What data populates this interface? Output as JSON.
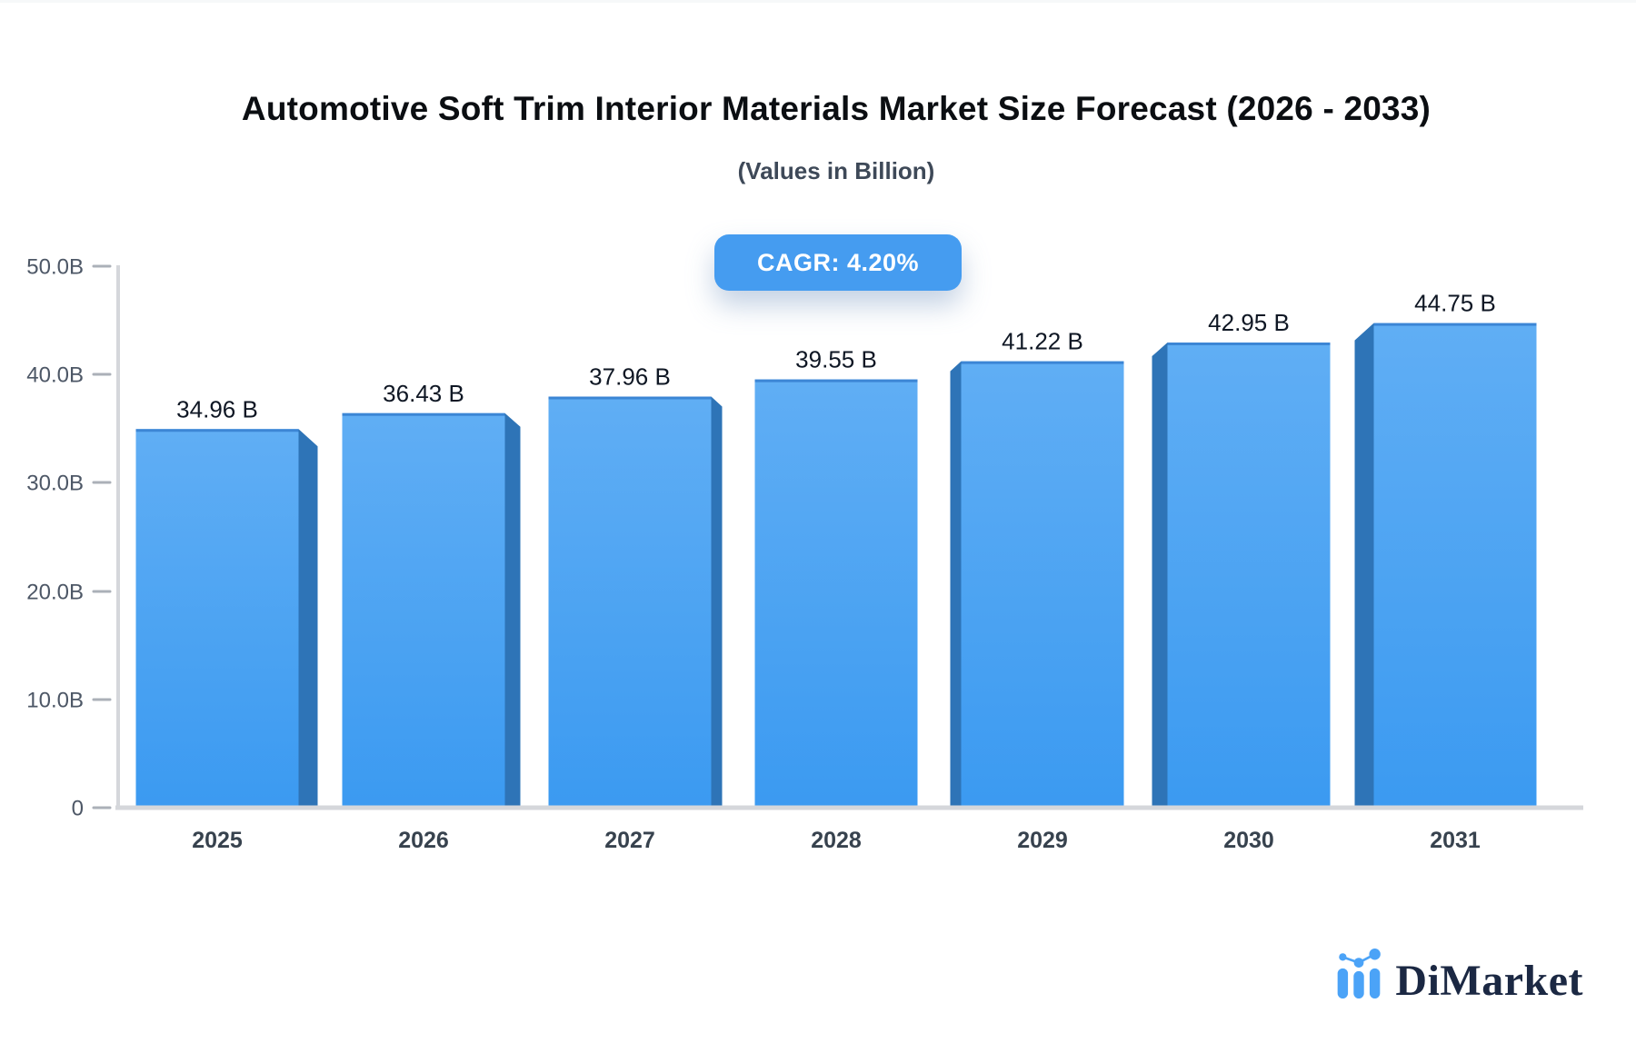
{
  "chart_data": {
    "type": "bar",
    "title": "Automotive Soft Trim Interior Materials Market Size Forecast (2026 - 2033)",
    "subtitle": "(Values in Billion)",
    "cagr_label": "CAGR: 4.20%",
    "categories": [
      "2025",
      "2026",
      "2027",
      "2028",
      "2029",
      "2030",
      "2031"
    ],
    "values": [
      34.96,
      36.43,
      37.96,
      39.55,
      41.22,
      42.95,
      44.75
    ],
    "value_labels": [
      "34.96 B",
      "36.43 B",
      "37.96 B",
      "39.55 B",
      "41.22 B",
      "42.95 B",
      "44.75 B"
    ],
    "y_ticks": [
      {
        "value": 0,
        "label": "0"
      },
      {
        "value": 10,
        "label": "10.0B"
      },
      {
        "value": 20,
        "label": "20.0B"
      },
      {
        "value": 30,
        "label": "30.0B"
      },
      {
        "value": 40,
        "label": "40.0B"
      },
      {
        "value": 50,
        "label": "50.0B"
      }
    ],
    "ylim": [
      0,
      50
    ],
    "xlabel": "",
    "ylabel": "",
    "grid": false,
    "legend": false,
    "bar_style": "3d-perspective"
  },
  "footer": {
    "brand_name": "DiMarket"
  },
  "colors": {
    "bar_face_top": "#60aef4",
    "bar_face_bottom": "#3b9af1",
    "bar_top_edge": "#3c86d5",
    "bar_side": "#2e74b7",
    "badge_bg": "#459cf0",
    "axis_line": "#d5d7db",
    "tick": "#abb0b8",
    "value_label": "#0f1724",
    "x_label": "#37424e",
    "y_label": "#4d5766",
    "title": "#0b0e12",
    "subtitle": "#3e4958",
    "brand_text": "#1b2843",
    "brand_icon": "#4ba3f7",
    "background": "#ffffff"
  }
}
